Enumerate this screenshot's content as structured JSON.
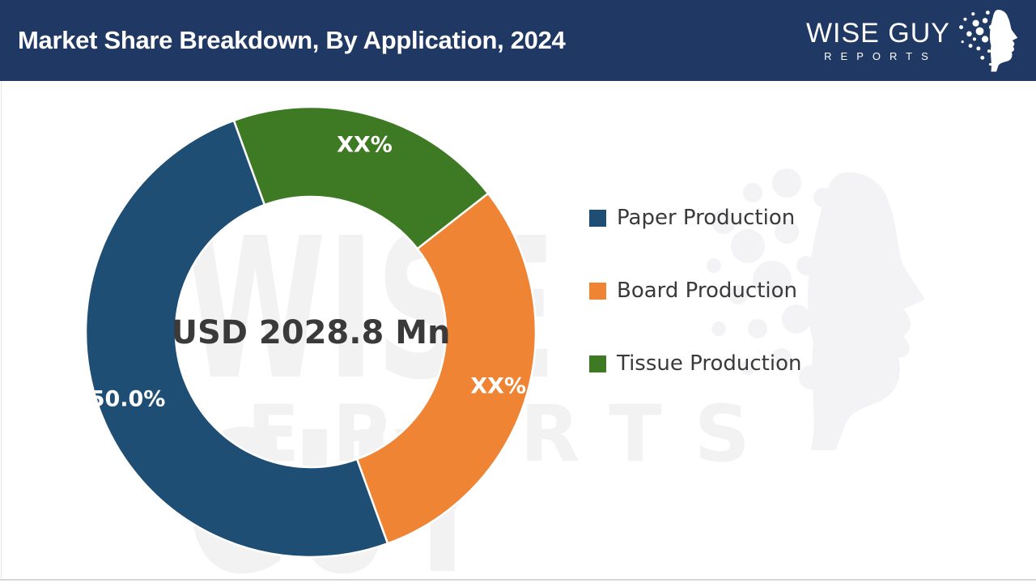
{
  "header": {
    "title": "Market Share Breakdown, By Application, 2024",
    "background_color": "#1f3864",
    "logo": {
      "name": "WISE GUY",
      "subtext": "REPORTS"
    }
  },
  "watermark": {
    "line1": "WISE GUY",
    "line2": "REPORTS"
  },
  "chart_data": {
    "type": "pie",
    "variant": "donut",
    "title": "Market Share Breakdown, By Application, 2024",
    "center_label": "USD 2028.8 Mn",
    "start_angle_deg": 110,
    "direction": "counterclockwise",
    "hole_ratio": 0.6,
    "legend_position": "right",
    "series": [
      {
        "label": "Paper Production",
        "value_pct": 50.0,
        "slice_label": "50.0%",
        "color": "#1f4e74"
      },
      {
        "label": "Board Production",
        "value_pct": 30.0,
        "slice_label": "XX%",
        "color": "#ee8434"
      },
      {
        "label": "Tissue Production",
        "value_pct": 20.0,
        "slice_label": "XX%",
        "color": "#3e7a23"
      }
    ]
  }
}
